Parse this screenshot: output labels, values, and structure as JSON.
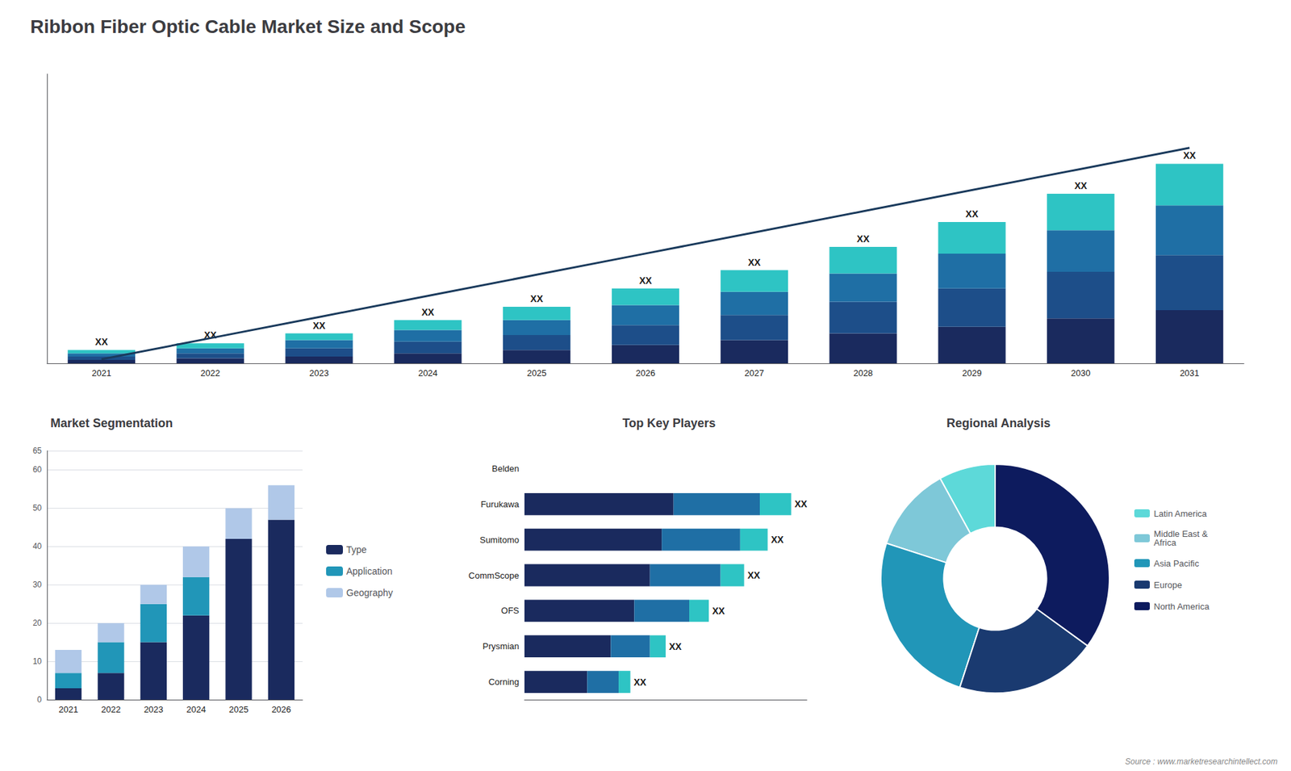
{
  "chart_data": [
    {
      "type": "bar",
      "title": "Ribbon Fiber Optic Cable Market Size and Scope",
      "categories": [
        "2021",
        "2022",
        "2023",
        "2024",
        "2025",
        "2026",
        "2027",
        "2028",
        "2029",
        "2030",
        "2031"
      ],
      "stacked": true,
      "series": [
        {
          "color": "#1a2a5e",
          "values": [
            2,
            3,
            4,
            6,
            8,
            11,
            14,
            18,
            22,
            27,
            32
          ]
        },
        {
          "color": "#1d4e89",
          "values": [
            2,
            3,
            5,
            7,
            9,
            12,
            15,
            19,
            23,
            28,
            33
          ]
        },
        {
          "color": "#1f6fa5",
          "values": [
            2,
            3,
            5,
            7,
            9,
            12,
            14,
            17,
            21,
            25,
            30
          ]
        },
        {
          "color": "#2ec4c4",
          "values": [
            2,
            3,
            4,
            6,
            8,
            10,
            13,
            16,
            19,
            22,
            25
          ]
        },
        {
          "type": "line",
          "color": "#1a3a5c",
          "values": [
            2.4,
            15.12,
            27.84,
            40.56,
            53.28,
            66.0,
            78.72,
            91.44,
            104.16,
            116.88,
            129.6
          ]
        }
      ],
      "ylim": [
        0,
        174
      ],
      "tick_labels": "x",
      "grid": false,
      "annotations": [
        {
          "category": "2021",
          "text": "XX"
        },
        {
          "category": "2022",
          "text": "XX"
        },
        {
          "category": "2023",
          "text": "XX"
        },
        {
          "category": "2024",
          "text": "XX"
        },
        {
          "category": "2025",
          "text": "XX"
        },
        {
          "category": "2026",
          "text": "XX"
        },
        {
          "category": "2027",
          "text": "XX"
        },
        {
          "category": "2028",
          "text": "XX"
        },
        {
          "category": "2029",
          "text": "XX"
        },
        {
          "category": "2030",
          "text": "XX"
        },
        {
          "category": "2031",
          "text": "XX"
        },
        {
          "text": "Source : www.marketresearchintellect.com"
        }
      ]
    },
    {
      "type": "bar",
      "title": "Market Segmentation",
      "categories": [
        "2021",
        "2022",
        "2023",
        "2024",
        "2025",
        "2026"
      ],
      "stacked": true,
      "series": [
        {
          "name": "Type",
          "color": "#1a2a5e",
          "values": [
            3,
            7,
            15,
            22,
            42,
            47
          ]
        },
        {
          "name": "Application",
          "color": "#2196b8",
          "values": [
            4,
            8,
            10,
            10,
            0,
            0
          ]
        },
        {
          "name": "Geography",
          "color": "#b0c8e8",
          "values": [
            6,
            5,
            5,
            8,
            8,
            9
          ]
        }
      ],
      "ylim": [
        0,
        65
      ],
      "yticks": [
        0,
        10,
        20,
        30,
        40,
        50,
        60
      ],
      "grid": true,
      "legend": "right"
    },
    {
      "type": "bar",
      "title": "Top Key Players",
      "orientation": "horizontal",
      "stacked": true,
      "categories": [
        "Belden",
        "Furukawa",
        "Sumitomo",
        "CommScope",
        "OFS",
        "Prysmian",
        "Corning"
      ],
      "series": [
        {
          "color": "#1a2a5e",
          "values": [
            null,
            0.38,
            0.35,
            0.32,
            0.28,
            0.22,
            0.16
          ]
        },
        {
          "color": "#1f6fa5",
          "values": [
            null,
            0.22,
            0.2,
            0.18,
            0.14,
            0.1,
            0.08
          ]
        },
        {
          "color": "#2ec4c4",
          "values": [
            null,
            0.08,
            0.07,
            0.06,
            0.05,
            0.04,
            0.03
          ]
        }
      ],
      "xlim": [
        0,
        0.72
      ],
      "tick_labels": "y",
      "grid": false,
      "annotations": [
        {
          "category": "Furukawa",
          "text": "XX"
        },
        {
          "category": "Sumitomo",
          "text": "XX"
        },
        {
          "category": "CommScope",
          "text": "XX"
        },
        {
          "category": "OFS",
          "text": "XX"
        },
        {
          "category": "Prysmian",
          "text": "XX"
        },
        {
          "category": "Corning",
          "text": "XX"
        }
      ]
    },
    {
      "type": "donut",
      "title": "Regional Analysis",
      "categories": [
        "Latin America",
        "Middle East &\nAfrica",
        "Asia Pacific",
        "Europe",
        "North America"
      ],
      "values": [
        8,
        12,
        25,
        20,
        35
      ],
      "colors": [
        "#5dd9d9",
        "#7ec8d8",
        "#2196b8",
        "#1a3a70",
        "#0d1b5e"
      ],
      "legend": "right"
    }
  ]
}
